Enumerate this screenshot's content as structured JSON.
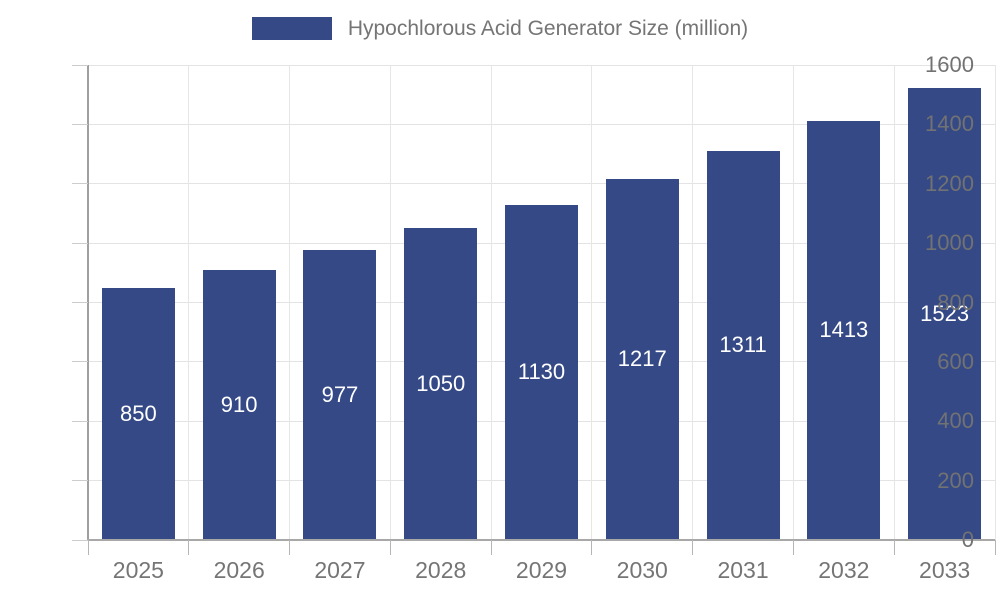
{
  "legend": {
    "label": "Hypochlorous Acid Generator Size (million)",
    "swatch_color": "#344986"
  },
  "chart_data": {
    "type": "bar",
    "title": "Hypochlorous Acid Generator Size (million)",
    "categories": [
      "2025",
      "2026",
      "2027",
      "2028",
      "2029",
      "2030",
      "2031",
      "2032",
      "2033"
    ],
    "values": [
      850,
      910,
      977,
      1050,
      1130,
      1217,
      1311,
      1413,
      1523
    ],
    "xlabel": "",
    "ylabel": "",
    "ylim": [
      0,
      1600
    ],
    "yticks": [
      0,
      200,
      400,
      600,
      800,
      1000,
      1200,
      1400,
      1600
    ],
    "grid": true,
    "legend_position": "top",
    "bar_color": "#344986",
    "value_label_color": "#ffffff"
  },
  "colors": {
    "bar": "#344986",
    "grid_horizontal": "#e3e3e3",
    "grid_vertical": "#e6e6e6",
    "axis": "#a8a8a8",
    "tick": "#b5b5b5",
    "y_tick_label": "#727272",
    "x_tick_label": "#757575",
    "legend_text": "#757575",
    "background": "#ffffff"
  }
}
